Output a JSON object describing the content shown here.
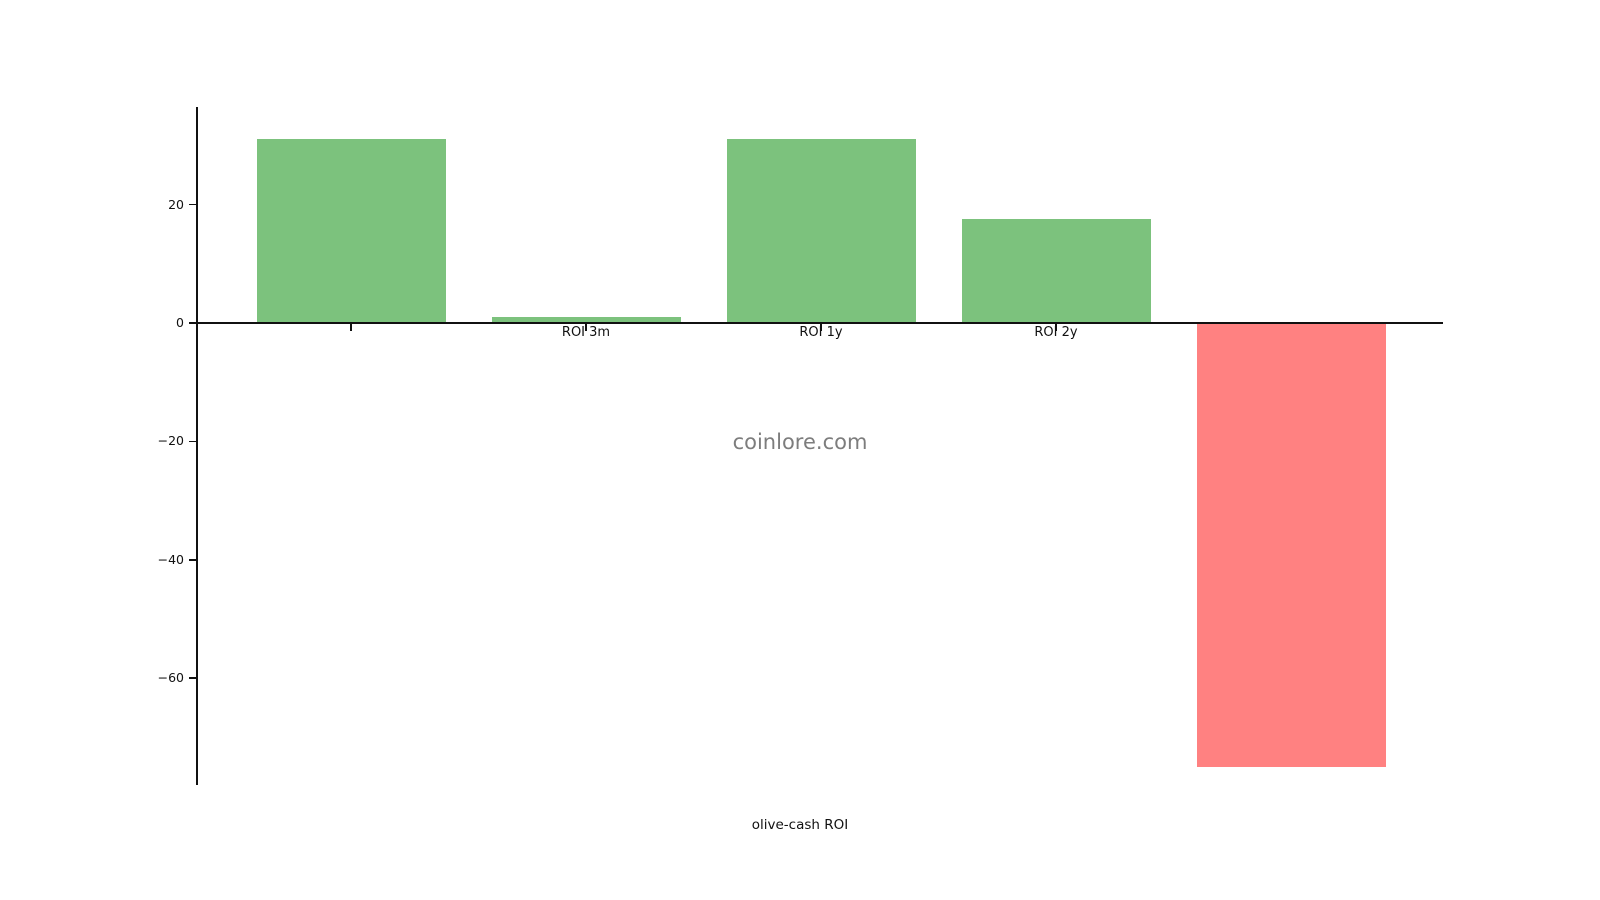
{
  "chart": {
    "watermark": "coinlore.com",
    "xlabel": "olive-cash ROI"
  },
  "chart_data": {
    "type": "bar",
    "title": "",
    "xlabel": "olive-cash ROI",
    "ylabel": "",
    "categories": [
      "",
      "ROI 3m",
      "ROI 1y",
      "ROI 2y",
      ""
    ],
    "values": [
      31,
      1,
      31,
      17.5,
      -75
    ],
    "yticks": [
      20,
      0,
      -20,
      -40,
      -60
    ],
    "ylim": [
      -78,
      36.5
    ],
    "grid": false,
    "legend": false,
    "positive_color": "#7cc27d",
    "negative_color": "#ff8181",
    "axis_color": "#111111",
    "text_color": "#111111",
    "watermark": "coinlore.com",
    "watermark_color": "#7d7d7d"
  }
}
